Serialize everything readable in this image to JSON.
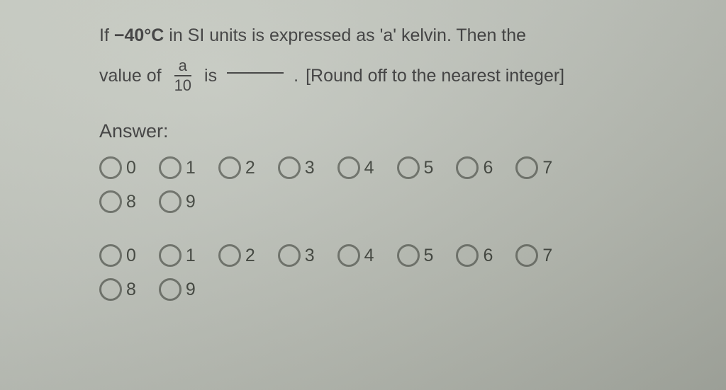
{
  "question": {
    "line1_prefix": "If ",
    "temp_value": "−40°C",
    "line1_mid": " in SI units is expressed as ",
    "quoted_var": "'a'",
    "line1_suffix": " kelvin. Then the",
    "line2_prefix": "value of",
    "frac_num": "a",
    "frac_den": "10",
    "line2_is": "is",
    "line2_period": ".",
    "hint": "[Round off to the nearest integer]"
  },
  "answer_label": "Answer:",
  "digits_row1": [
    "0",
    "1",
    "2",
    "3",
    "4",
    "5",
    "6",
    "7"
  ],
  "digits_row2": [
    "8",
    "9"
  ],
  "digits2_row1": [
    "0",
    "1",
    "2",
    "3",
    "4",
    "5",
    "6",
    "7"
  ],
  "digits2_row2": [
    "8",
    "9"
  ],
  "style": {
    "radio_border": "#6b6f67",
    "text_color": "#3a3a3a",
    "bg_start": "#c9cdc4",
    "bg_end": "#a8aca3"
  }
}
